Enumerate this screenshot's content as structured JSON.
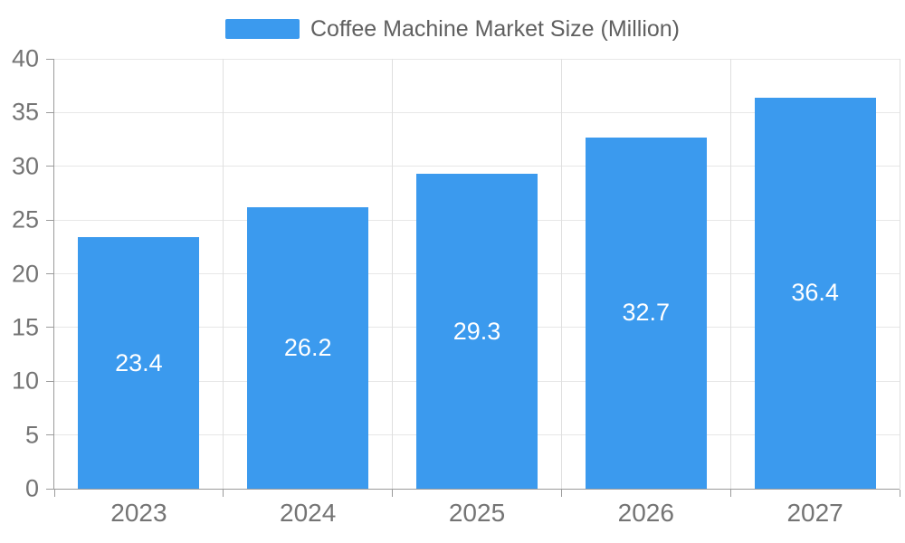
{
  "legend": {
    "label": "Coffee Machine Market Size (Million)"
  },
  "chart_data": {
    "type": "bar",
    "title": "Coffee Machine Market Size (Million)",
    "categories": [
      "2023",
      "2024",
      "2025",
      "2026",
      "2027"
    ],
    "series": [
      {
        "name": "Coffee Machine Market Size (Million)",
        "values": [
          23.4,
          26.2,
          29.3,
          32.7,
          36.4
        ]
      }
    ],
    "value_labels": [
      "23.4",
      "26.2",
      "29.3",
      "32.7",
      "36.4"
    ],
    "xlabel": "",
    "ylabel": "",
    "ylim": [
      0,
      40
    ],
    "y_ticks": [
      0,
      5,
      10,
      15,
      20,
      25,
      30,
      35,
      40
    ],
    "grid": true,
    "legend_position": "top-center"
  },
  "colors": {
    "bar": "#3B9AEE",
    "background": "#FFFFFF",
    "legend_text": "#606060",
    "axis_text": "#747474",
    "axis_line": "#9B9B9B",
    "grid_horizontal": "#E7E7E7",
    "grid_vertical": "#DFDFDF",
    "value_label": "#FFFFFF"
  }
}
